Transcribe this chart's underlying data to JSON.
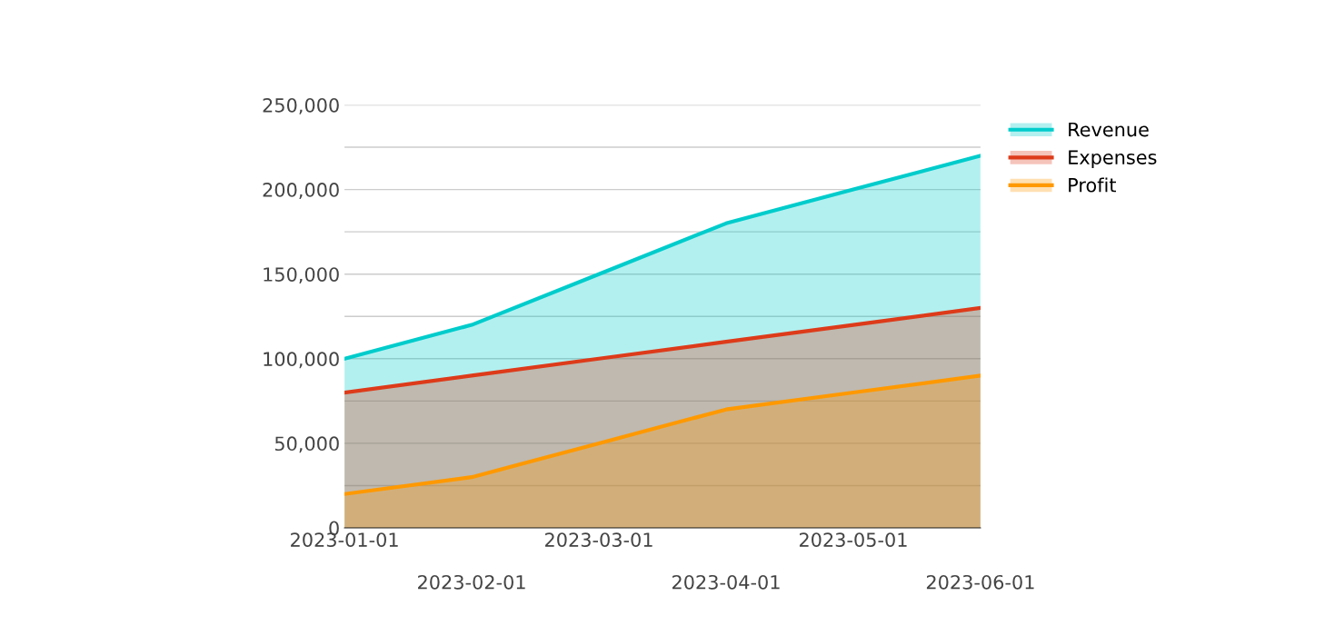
{
  "chart_data": {
    "type": "area",
    "categories": [
      "2023-01-01",
      "2023-02-01",
      "2023-03-01",
      "2023-04-01",
      "2023-05-01",
      "2023-06-01"
    ],
    "series": [
      {
        "name": "Revenue",
        "color": "#00cccc",
        "values": [
          100000,
          120000,
          150000,
          180000,
          200000,
          220000
        ]
      },
      {
        "name": "Expenses",
        "color": "#dd3b1a",
        "values": [
          80000,
          90000,
          100000,
          110000,
          120000,
          130000
        ]
      },
      {
        "name": "Profit",
        "color": "#ff9900",
        "values": [
          20000,
          30000,
          50000,
          70000,
          80000,
          90000
        ]
      }
    ],
    "ylim": [
      0,
      250000
    ],
    "yticks": [
      {
        "value": 0,
        "label": "0"
      },
      {
        "value": 25000,
        "label": null
      },
      {
        "value": 50000,
        "label": "50,000"
      },
      {
        "value": 75000,
        "label": null
      },
      {
        "value": 100000,
        "label": "100,000"
      },
      {
        "value": 125000,
        "label": null
      },
      {
        "value": 150000,
        "label": "150,000"
      },
      {
        "value": 175000,
        "label": null
      },
      {
        "value": 200000,
        "label": "200,000"
      },
      {
        "value": 225000,
        "label": null
      },
      {
        "value": 250000,
        "label": "250,000"
      }
    ],
    "grid": "y",
    "legend": "top right"
  }
}
